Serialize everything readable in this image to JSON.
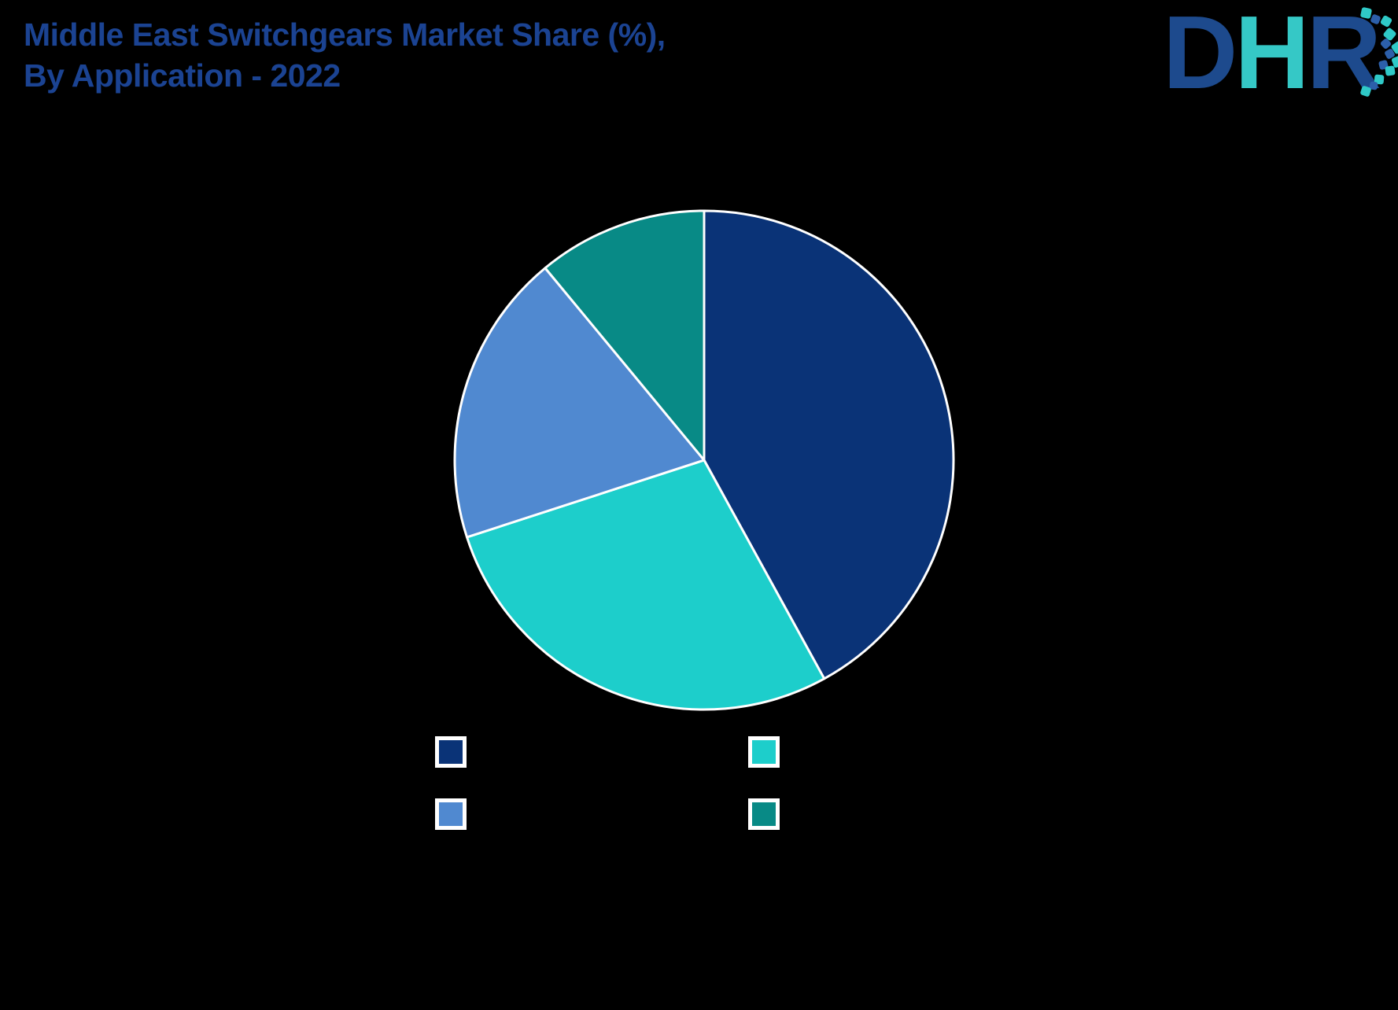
{
  "page": {
    "background": "#000000"
  },
  "header": {
    "title_line1": "Middle East Switchgears Market Share (%),",
    "title_line2": "By Application - 2022",
    "title_color": "#1b4392"
  },
  "logo": {
    "letters": [
      {
        "char": "D",
        "color": "#1d4a8d"
      },
      {
        "char": "H",
        "color": "#35c8c6"
      },
      {
        "char": "R",
        "color": "#1d4a8d"
      }
    ],
    "dot_colors": {
      "blue": "#2c5faa",
      "teal": "#2fc9c7"
    }
  },
  "chart_data": {
    "type": "pie",
    "title": "Middle East Switchgears Market Share (%), By Application - 2022",
    "unit": "%",
    "values": [
      42,
      28,
      19,
      11
    ],
    "labels": [
      "",
      "",
      "",
      ""
    ],
    "colors": [
      "#0a3377",
      "#1dcecb",
      "#5089d0",
      "#088a86"
    ],
    "start_angle_deg": 0,
    "direction": "clockwise",
    "slice_border_color": "#ffffff",
    "legend_position": "bottom",
    "note": "Legend label text is rendered in black on the dark/transparent background and is not legible in the screenshot; only the four color swatches are visible."
  },
  "legend": {
    "items": [
      {
        "color": "#0a3377",
        "label": ""
      },
      {
        "color": "#1dcecb",
        "label": ""
      },
      {
        "color": "#5089d0",
        "label": ""
      },
      {
        "color": "#088a86",
        "label": ""
      }
    ]
  }
}
